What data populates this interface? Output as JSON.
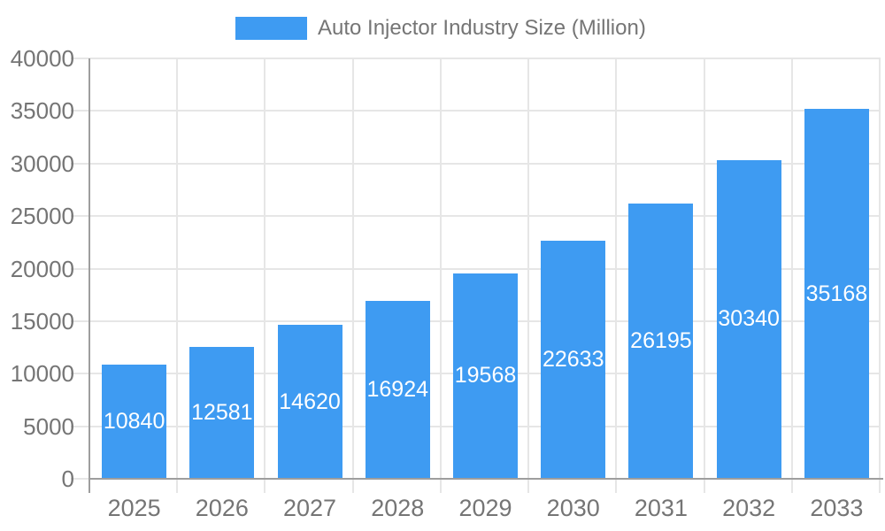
{
  "chart_data": {
    "type": "bar",
    "title": "Auto Injector Industry Size (Million)",
    "legend": {
      "position": "top",
      "entries": [
        {
          "label": "Auto Injector Industry Size (Million)",
          "color": "#3E9BF2"
        }
      ]
    },
    "categories": [
      "2025",
      "2026",
      "2027",
      "2028",
      "2029",
      "2030",
      "2031",
      "2032",
      "2033"
    ],
    "series": [
      {
        "name": "Auto Injector Industry Size (Million)",
        "values": [
          10840,
          12581,
          14620,
          16924,
          19568,
          22633,
          26195,
          30340,
          35168
        ]
      }
    ],
    "value_labels": [
      "10840",
      "12581",
      "14620",
      "16924",
      "19568",
      "22633",
      "26195",
      "30340",
      "35168"
    ],
    "xlabel": "",
    "ylabel": "",
    "ylim": [
      0,
      40000
    ],
    "ytick_step": 5000,
    "yticks": [
      0,
      5000,
      10000,
      15000,
      20000,
      25000,
      30000,
      35000,
      40000
    ],
    "grid": true,
    "colors": {
      "bar": "#3E9BF2",
      "grid": "#e6e6e6",
      "axis": "#9e9e9e",
      "tick_label": "#757575",
      "value_label": "#ffffff",
      "background": "#ffffff"
    }
  }
}
